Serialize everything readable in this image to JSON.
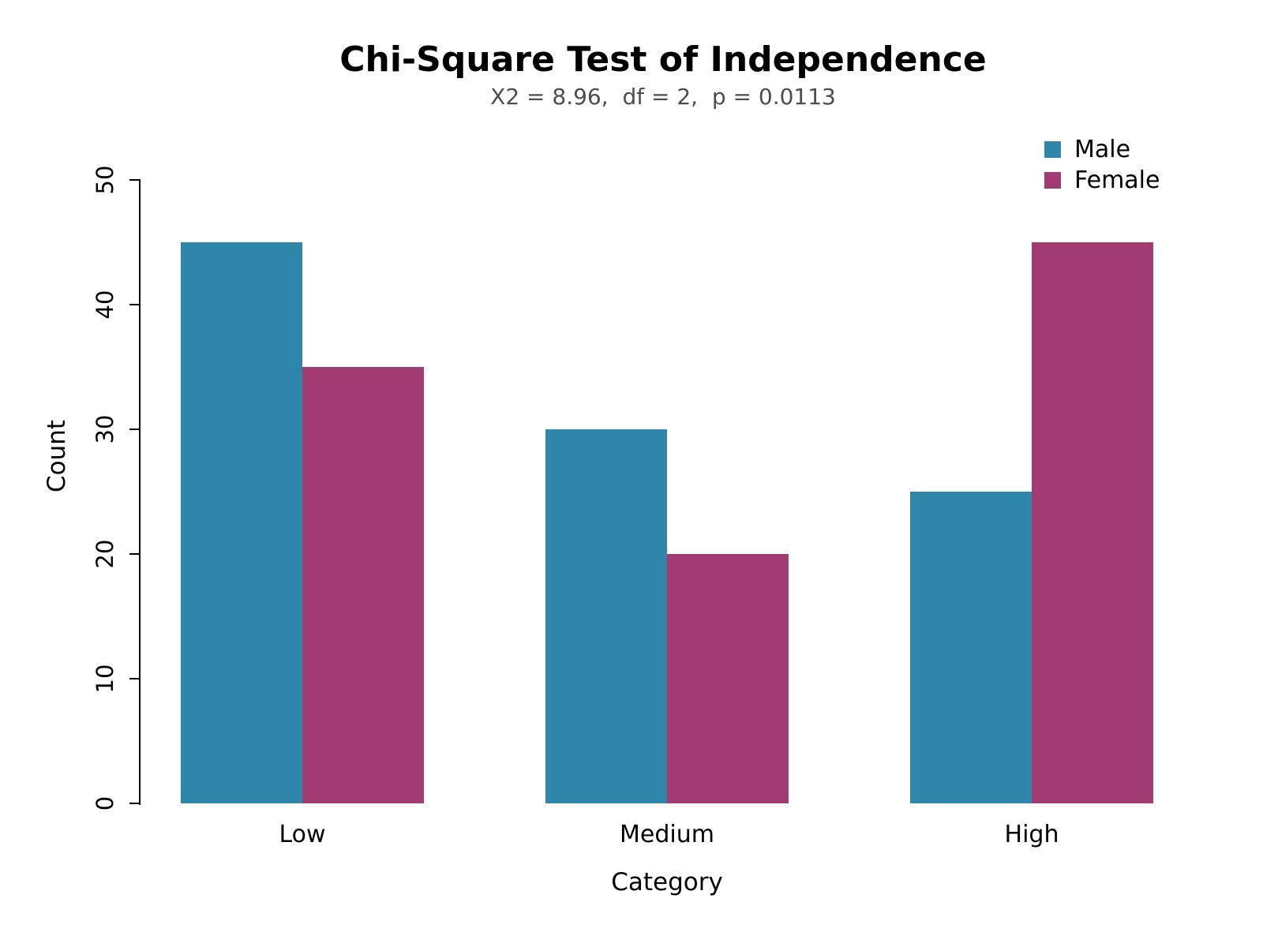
{
  "title": "Chi-Square Test of Independence",
  "subtitle": "X2 = 8.96,  df = 2,  p = 0.0113",
  "chart_data": {
    "type": "bar",
    "categories": [
      "Low",
      "Medium",
      "High"
    ],
    "series": [
      {
        "name": "Male",
        "color": "#2E86AB",
        "values": [
          45,
          30,
          25
        ]
      },
      {
        "name": "Female",
        "color": "#A23B72",
        "values": [
          35,
          20,
          45
        ]
      }
    ],
    "title": "Chi-Square Test of Independence",
    "subtitle": "X2 = 8.96,  df = 2,  p = 0.0113",
    "xlabel": "Category",
    "ylabel": "Count",
    "ylim": [
      0,
      50
    ],
    "yticks": [
      0,
      10,
      20,
      30,
      40,
      50
    ],
    "grid": false,
    "legend_position": "top-right",
    "bar_style": "grouped"
  }
}
